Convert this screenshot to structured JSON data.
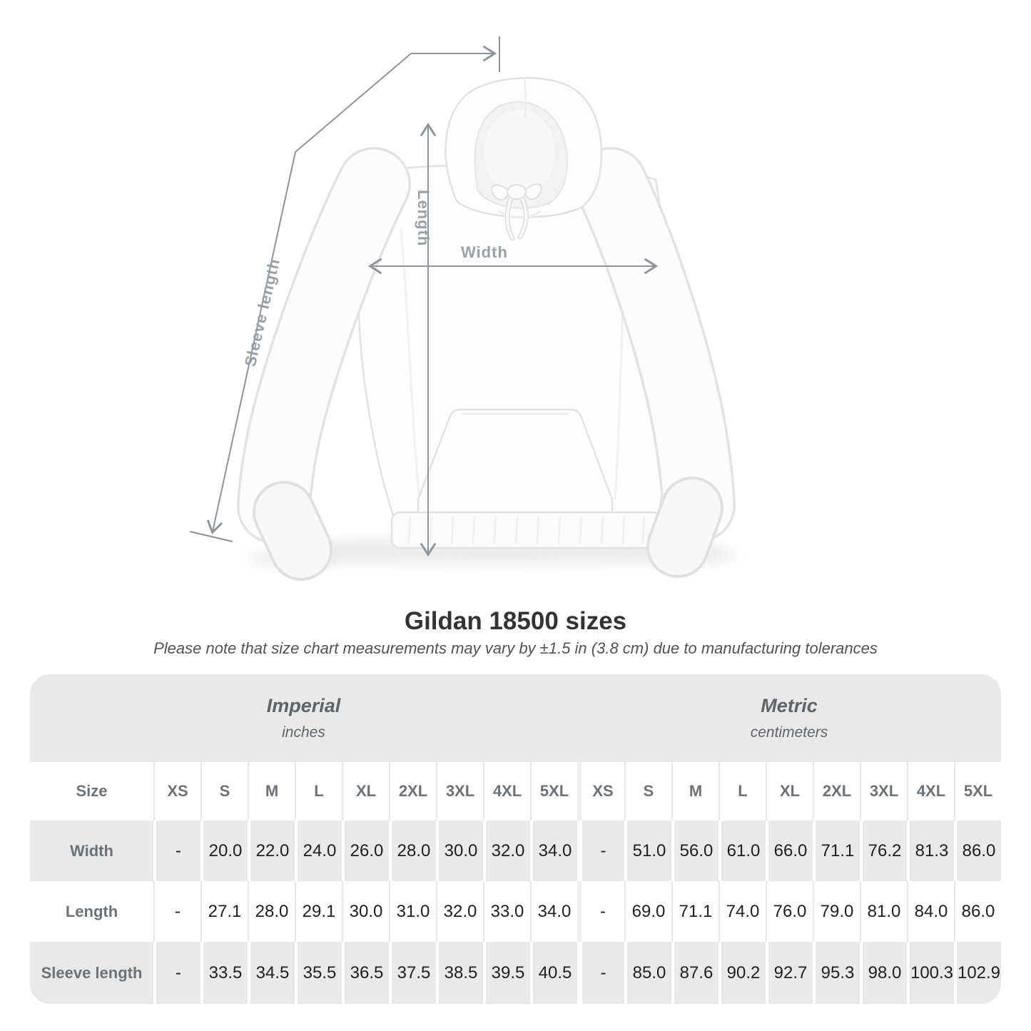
{
  "title": "Gildan 18500 sizes",
  "note": "Please note that size chart measurements may vary by ±1.5 in (3.8 cm) due to manufacturing tolerances",
  "diagram": {
    "length_label": "Length",
    "width_label": "Width",
    "sleeve_label": "Sleeve length",
    "line_color": "#8d949b",
    "label_color": "#99a0a7"
  },
  "colors": {
    "stripe_gray": "#e9e9e9",
    "header_text": "#6c7278",
    "value_text": "#202020"
  },
  "chart_data": {
    "type": "table",
    "title": "Gildan 18500 sizes",
    "note": "Please note that size chart measurements may vary by ±1.5 in (3.8 cm) due to manufacturing tolerances",
    "size_header": "Size",
    "sizes": [
      "XS",
      "S",
      "M",
      "L",
      "XL",
      "2XL",
      "3XL",
      "4XL",
      "5XL"
    ],
    "groups": [
      {
        "label": "Imperial",
        "unit": "inches"
      },
      {
        "label": "Metric",
        "unit": "centimeters"
      }
    ],
    "rows": [
      {
        "label": "Width",
        "imperial": [
          "-",
          "20.0",
          "22.0",
          "24.0",
          "26.0",
          "28.0",
          "30.0",
          "32.0",
          "34.0"
        ],
        "metric": [
          "-",
          "51.0",
          "56.0",
          "61.0",
          "66.0",
          "71.1",
          "76.2",
          "81.3",
          "86.0"
        ]
      },
      {
        "label": "Length",
        "imperial": [
          "-",
          "27.1",
          "28.0",
          "29.1",
          "30.0",
          "31.0",
          "32.0",
          "33.0",
          "34.0"
        ],
        "metric": [
          "-",
          "69.0",
          "71.1",
          "74.0",
          "76.0",
          "79.0",
          "81.0",
          "84.0",
          "86.0"
        ]
      },
      {
        "label": "Sleeve length",
        "imperial": [
          "-",
          "33.5",
          "34.5",
          "35.5",
          "36.5",
          "37.5",
          "38.5",
          "39.5",
          "40.5"
        ],
        "metric": [
          "-",
          "85.0",
          "87.6",
          "90.2",
          "92.7",
          "95.3",
          "98.0",
          "100.3",
          "102.9"
        ]
      }
    ]
  }
}
